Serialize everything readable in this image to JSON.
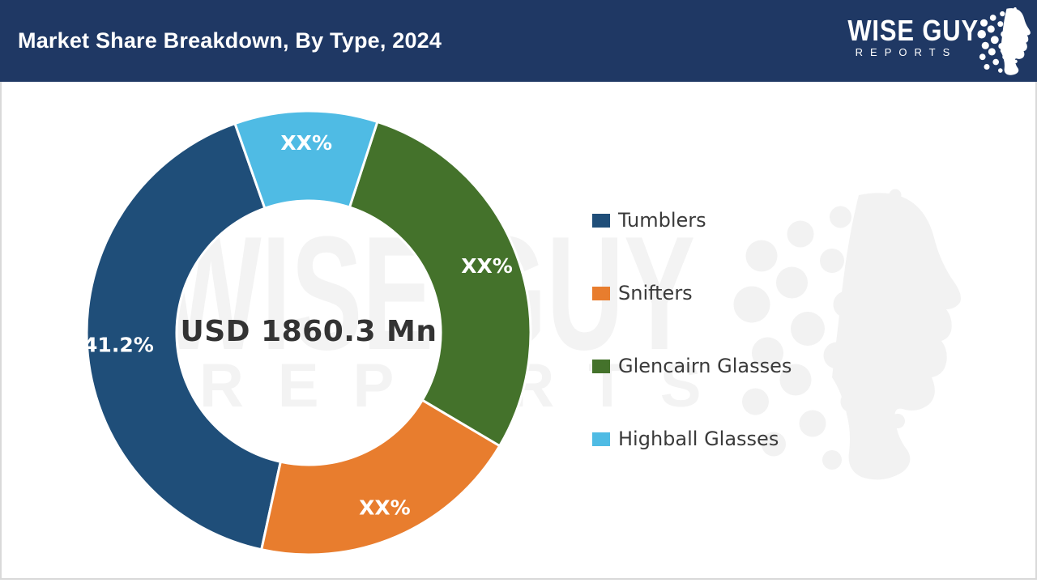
{
  "page": {
    "background": "#ffffff",
    "border_color": "#d9d9d9"
  },
  "header": {
    "background": "#1F3864",
    "title": "Market Share Breakdown, By Type, 2024",
    "logo": {
      "brand": "WISE GUY",
      "sub": "REPORTS"
    }
  },
  "watermark": {
    "brand": "WISE GUY",
    "sub": "REPORTS"
  },
  "chart_data": {
    "type": "donut",
    "title": "Market Share Breakdown, By Type, 2024",
    "center_label": "USD 1860.3 Mn",
    "start_angle_deg": 109.4,
    "direction": "counterclockwise",
    "inner_radius_ratio": 0.595,
    "label_radius_ratio": 0.858,
    "label_color": "#ffffff",
    "segment_border_color": "#ffffff",
    "legend_position": "right",
    "segments": [
      {
        "name": "Tumblers",
        "share_pct": 41.2,
        "label": "41.2%",
        "color": "#1F4E79"
      },
      {
        "name": "Snifters",
        "share_pct": 19.9,
        "label": "XX%",
        "color": "#E87D2E"
      },
      {
        "name": "Glencairn Glasses",
        "share_pct": 28.5,
        "label": "XX%",
        "color": "#44722B"
      },
      {
        "name": "Highball Glasses",
        "share_pct": 10.4,
        "label": "XX%",
        "color": "#4FBBE4"
      }
    ]
  }
}
